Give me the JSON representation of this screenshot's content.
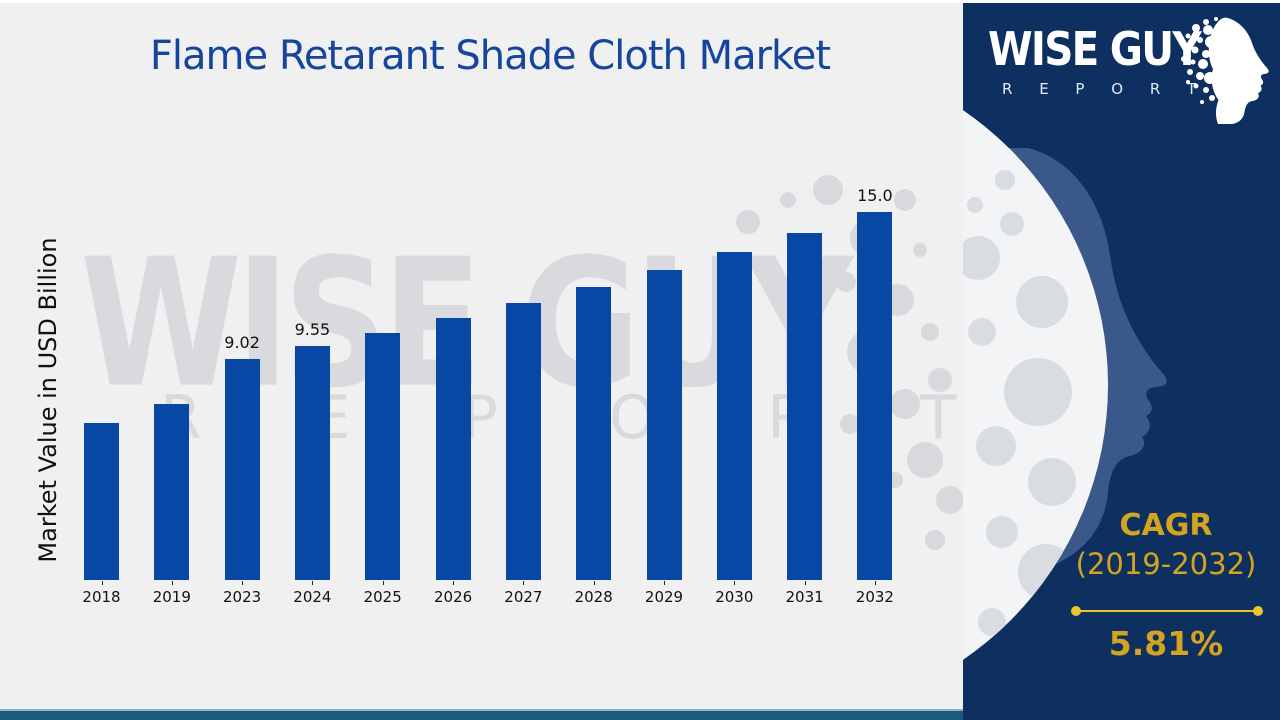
{
  "title": "Flame Retarant Shade Cloth Market",
  "y_axis_label": "Market Value in USD Billion",
  "watermark": {
    "line1": "WISE GUY",
    "line2": "R E P O R T S"
  },
  "logo": {
    "line1": "WISE GUY",
    "line2": "R E P O R T S"
  },
  "cagr": {
    "label": "CAGR",
    "range": "(2019-2032)",
    "value": "5.81%"
  },
  "colors": {
    "background": "#f0f0f1",
    "bar": "#0847a3",
    "title_text": "#15459c",
    "navy_panel": "#0d3060",
    "face_silhouette": "#3b588a",
    "circle": "#f3f4f6",
    "gold": "#d4a41e",
    "bottom_strip": "#1a5a7d",
    "watermark": "#d8dade"
  },
  "chart_data": {
    "type": "bar",
    "title": "Flame Retarant Shade Cloth Market",
    "xlabel": "",
    "ylabel": "Market Value in USD Billion",
    "categories": [
      "2018",
      "2019",
      "2023",
      "2024",
      "2025",
      "2026",
      "2027",
      "2028",
      "2029",
      "2030",
      "2031",
      "2032"
    ],
    "values": [
      6.4,
      7.2,
      9.02,
      9.55,
      10.1,
      10.69,
      11.31,
      11.97,
      12.66,
      13.4,
      14.18,
      15.0
    ],
    "data_labels": {
      "2023": "9.02",
      "2024": "9.55",
      "2032": "15.0"
    },
    "ylim": [
      0,
      16.5
    ],
    "grid": false,
    "legend": null,
    "bar_color": "#0847a3"
  }
}
